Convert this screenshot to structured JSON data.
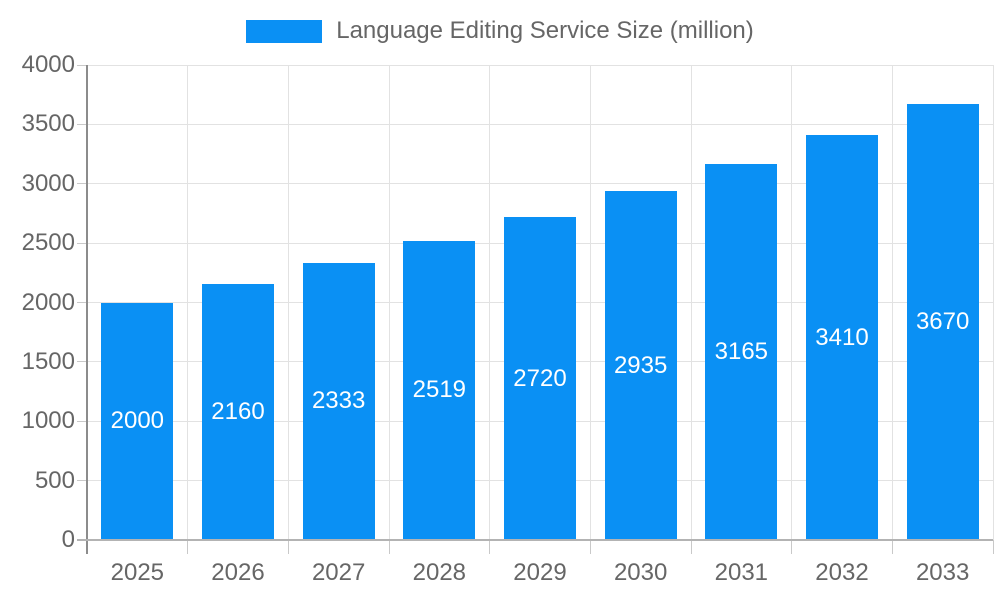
{
  "legend": {
    "label": "Language Editing Service Size (million)"
  },
  "chart_data": {
    "type": "bar",
    "title": "Language Editing Service Size (million)",
    "categories": [
      "2025",
      "2026",
      "2027",
      "2028",
      "2029",
      "2030",
      "2031",
      "2032",
      "2033"
    ],
    "values": [
      2000,
      2160,
      2333,
      2519,
      2720,
      2935,
      3165,
      3410,
      3670
    ],
    "series": [
      {
        "name": "Language Editing Service Size (million)",
        "values": [
          2000,
          2160,
          2333,
          2519,
          2720,
          2935,
          3165,
          3410,
          3670
        ]
      }
    ],
    "xlabel": "",
    "ylabel": "",
    "ylim": [
      0,
      4000
    ],
    "yticks": [
      0,
      500,
      1000,
      1500,
      2000,
      2500,
      3000,
      3500,
      4000
    ],
    "grid": true,
    "legend_position": "top",
    "data_labels": "inside-center",
    "colors": {
      "bar": "#0a90f4",
      "axis_text": "#666666",
      "data_label_text": "#ffffff",
      "gridline": "#e2e2e2",
      "y_axis_line": "#8c8c8c",
      "x_axis_line": "#b3b3b3",
      "tick": "#c9c9c9",
      "background": "#ffffff"
    }
  }
}
